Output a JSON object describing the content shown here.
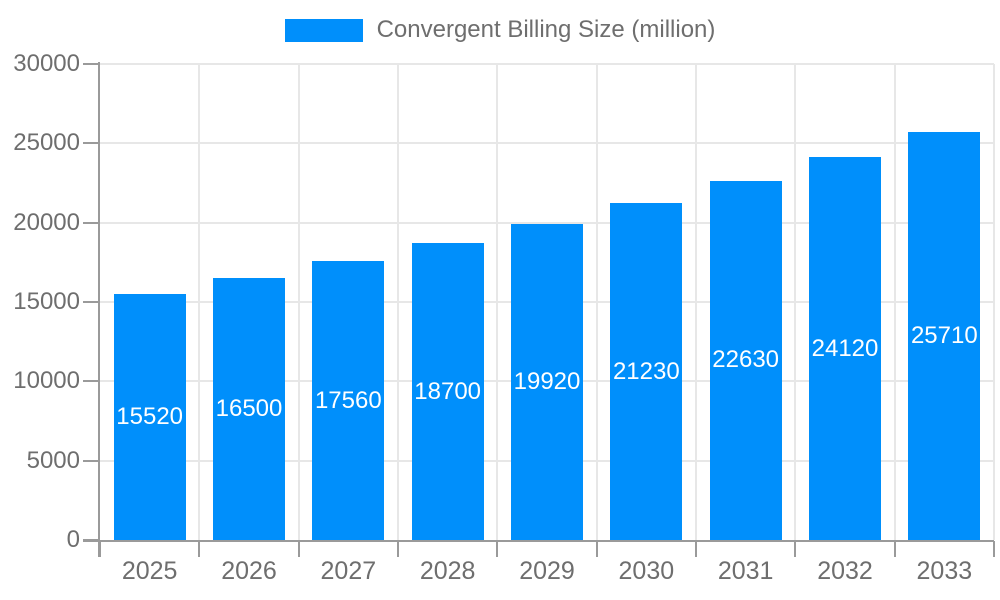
{
  "legend": {
    "swatch_icon": "series-color-swatch",
    "label": "Convergent Billing Size (million)"
  },
  "colors": {
    "bar": "#008FFB",
    "grid": "#e7e7e7",
    "axis": "#9a9a9a",
    "tick_text": "#6e6e6e",
    "legend_text": "#6e6e6e",
    "value_label": "#ffffff",
    "background": "#ffffff"
  },
  "chart_data": {
    "type": "bar",
    "title": "Convergent Billing Size (million)",
    "series_name": "Convergent Billing Size (million)",
    "categories": [
      "2025",
      "2026",
      "2027",
      "2028",
      "2029",
      "2030",
      "2031",
      "2032",
      "2033"
    ],
    "values": [
      15520,
      16500,
      17560,
      18700,
      19920,
      21230,
      22630,
      24120,
      25710
    ],
    "xlabel": "",
    "ylabel": "",
    "ylim": [
      0,
      30000
    ],
    "yticks": [
      0,
      5000,
      10000,
      15000,
      20000,
      25000,
      30000
    ],
    "grid": true,
    "legend_position": "top",
    "value_labels": "inside-center"
  }
}
